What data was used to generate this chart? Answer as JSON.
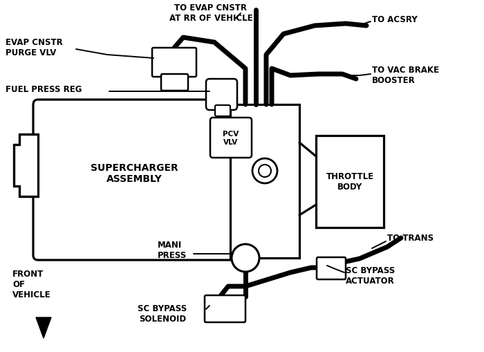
{
  "labels": {
    "evap_purge": "EVAP CNSTR\nPURGE VLV",
    "to_evap": "TO EVAP CNSTR\nAT RR OF VEHICLE",
    "fuel_press": "FUEL PRESS REG",
    "to_acsry": "TO ACSRY",
    "to_vac": "TO VAC BRAKE\nBOOSTER",
    "pcv": "PCV\nVLV",
    "supercharger": "SUPERCHARGER\nASSEMBLY",
    "throttle": "THROTTLE\nBODY",
    "mani": "MANI\nPRESS",
    "solenoid": "SC BYPASS\nSOLENOID",
    "actuator": "SC BYPASS\nACTUATOR",
    "trans": "TO TRANS",
    "front": "FRONT\nOF\nVEHICLE"
  },
  "figw": 7.0,
  "figh": 5.1,
  "dpi": 100
}
